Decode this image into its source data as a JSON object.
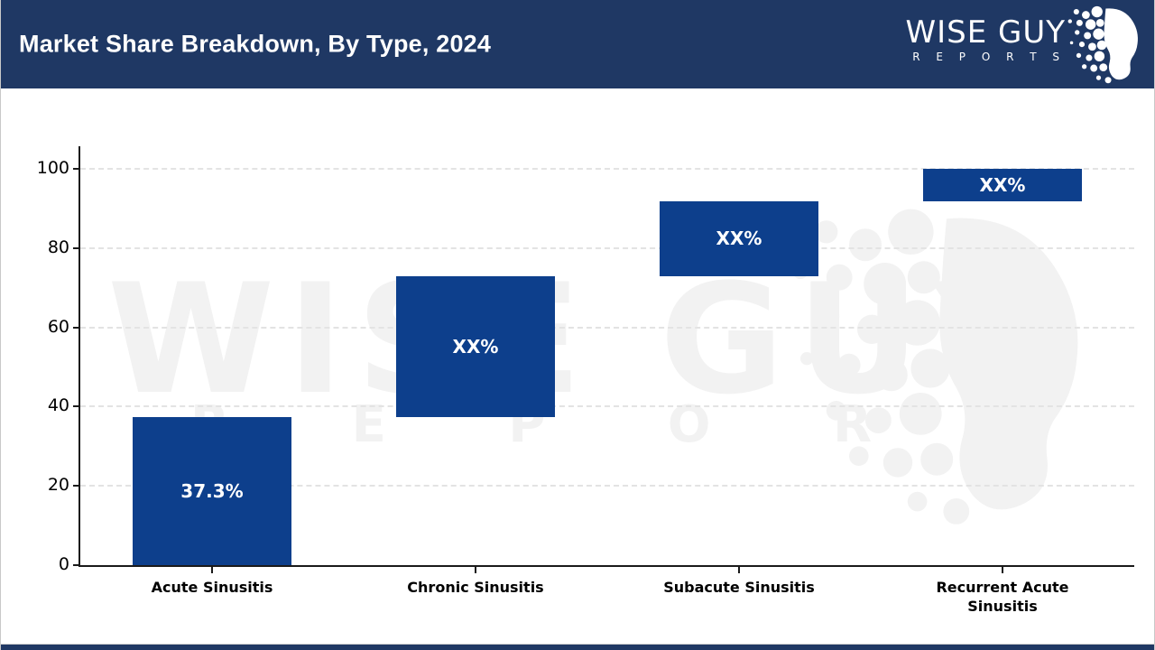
{
  "header": {
    "title": "Market Share Breakdown, By Type, 2024",
    "logo_line1": "WISE GUY",
    "logo_line2": "R E P O R T S"
  },
  "watermark": {
    "line1": "WISE GUY",
    "line2": "R E P O R T S"
  },
  "colors": {
    "header_bg": "#1f3864",
    "bar_blue": "#0d3f8c",
    "gridline": "#e3e3e3",
    "watermark_gray": "#f2f2f2"
  },
  "chart_data": {
    "type": "bar",
    "subtype": "waterfall",
    "title": "Market Share Breakdown, By Type, 2024",
    "categories": [
      "Acute Sinusitis",
      "Chronic Sinusitis",
      "Subacute Sinusitis",
      "Recurrent Acute Sinusitis"
    ],
    "segments": [
      {
        "category": "Acute Sinusitis",
        "start": 0,
        "end": 37.3,
        "label": "37.3%"
      },
      {
        "category": "Chronic Sinusitis",
        "start": 37.3,
        "end": 73,
        "label": "XX%"
      },
      {
        "category": "Subacute Sinusitis",
        "start": 73,
        "end": 91.7,
        "label": "XX%"
      },
      {
        "category": "Recurrent Acute Sinusitis",
        "start": 91.7,
        "end": 100,
        "label": "XX%"
      }
    ],
    "y_ticks": [
      0,
      20,
      40,
      60,
      80,
      100
    ],
    "ylim": [
      0,
      100
    ],
    "xlabel": "",
    "ylabel": "",
    "grid": "horizontal-dashed",
    "legend": "none"
  }
}
